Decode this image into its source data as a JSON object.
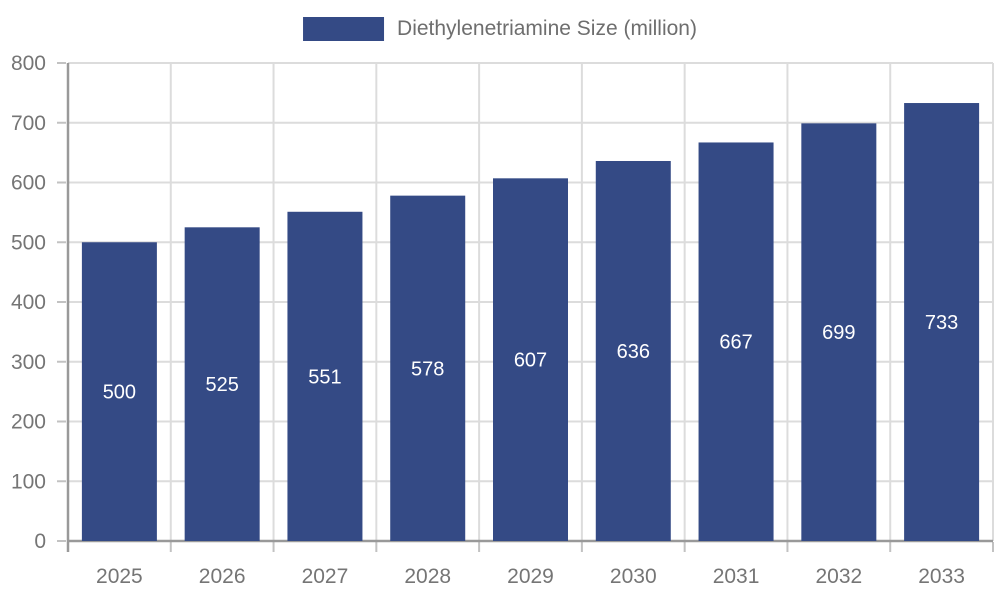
{
  "legend": {
    "label": "Diethylenetriamine Size (million)"
  },
  "chart_data": {
    "type": "bar",
    "title": "Diethylenetriamine Size (million)",
    "categories": [
      "2025",
      "2026",
      "2027",
      "2028",
      "2029",
      "2030",
      "2031",
      "2032",
      "2033"
    ],
    "values": [
      500,
      525,
      551,
      578,
      607,
      636,
      667,
      699,
      733
    ],
    "xlabel": "",
    "ylabel": "",
    "ylim": [
      0,
      800
    ],
    "yticks": [
      0,
      100,
      200,
      300,
      400,
      500,
      600,
      700,
      800
    ],
    "grid": true,
    "legend_position": "top-center",
    "colors": {
      "bar": "#344a85",
      "grid": "#dcdcdc",
      "axis": "#999999",
      "tick": "#c2c2c2",
      "tick_label": "#757575",
      "bar_label": "#ffffff",
      "legend_text": "#6e6e6e"
    }
  }
}
